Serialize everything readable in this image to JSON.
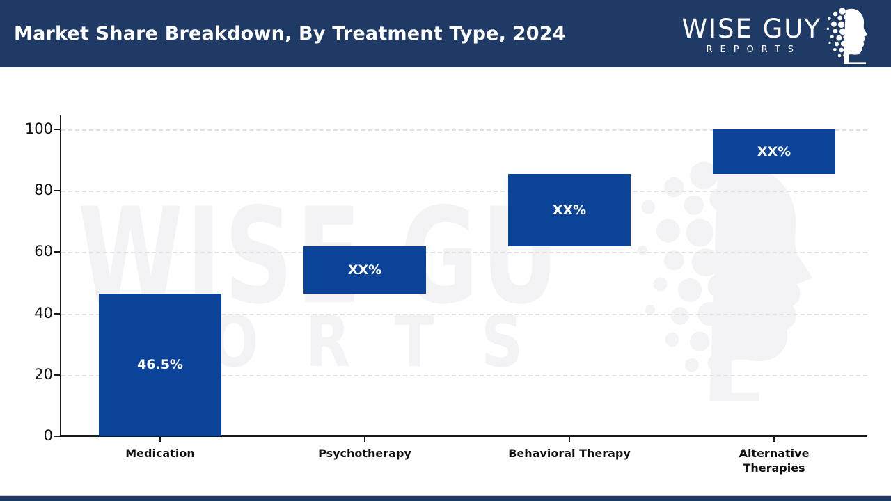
{
  "header": {
    "title": "Market Share Breakdown, By Treatment Type, 2024",
    "bg_color": "#203a66",
    "logo": {
      "line1": "WISE GUY",
      "line2": "REPORTS"
    }
  },
  "watermark": {
    "line1": "WISE GU",
    "line2": "PORTS"
  },
  "chart_data": {
    "type": "bar",
    "subtype": "waterfall",
    "title": "Market Share Breakdown, By Treatment Type, 2024",
    "xlabel": "",
    "ylabel": "",
    "categories": [
      "Medication",
      "Psychotherapy",
      "Behavioral Therapy",
      "Alternative\nTherapies"
    ],
    "segments": [
      {
        "category": "Medication",
        "start": 0,
        "end": 46.5,
        "label": "46.5%"
      },
      {
        "category": "Psychotherapy",
        "start": 46.5,
        "end": 62,
        "label": "XX%"
      },
      {
        "category": "Behavioral Therapy",
        "start": 62,
        "end": 85.5,
        "label": "XX%"
      },
      {
        "category": "Alternative Therapies",
        "start": 85.5,
        "end": 100,
        "label": "XX%"
      }
    ],
    "yticks": [
      0,
      20,
      40,
      60,
      80,
      100
    ],
    "ylim": [
      0,
      105
    ],
    "grid": "horizontal-dashed",
    "legend": "none",
    "bar_color": "#0a4397",
    "bar_label_color": "#ffffff",
    "axis_color": "#1a1a1a",
    "gridline_color": "#e0e0e0"
  }
}
